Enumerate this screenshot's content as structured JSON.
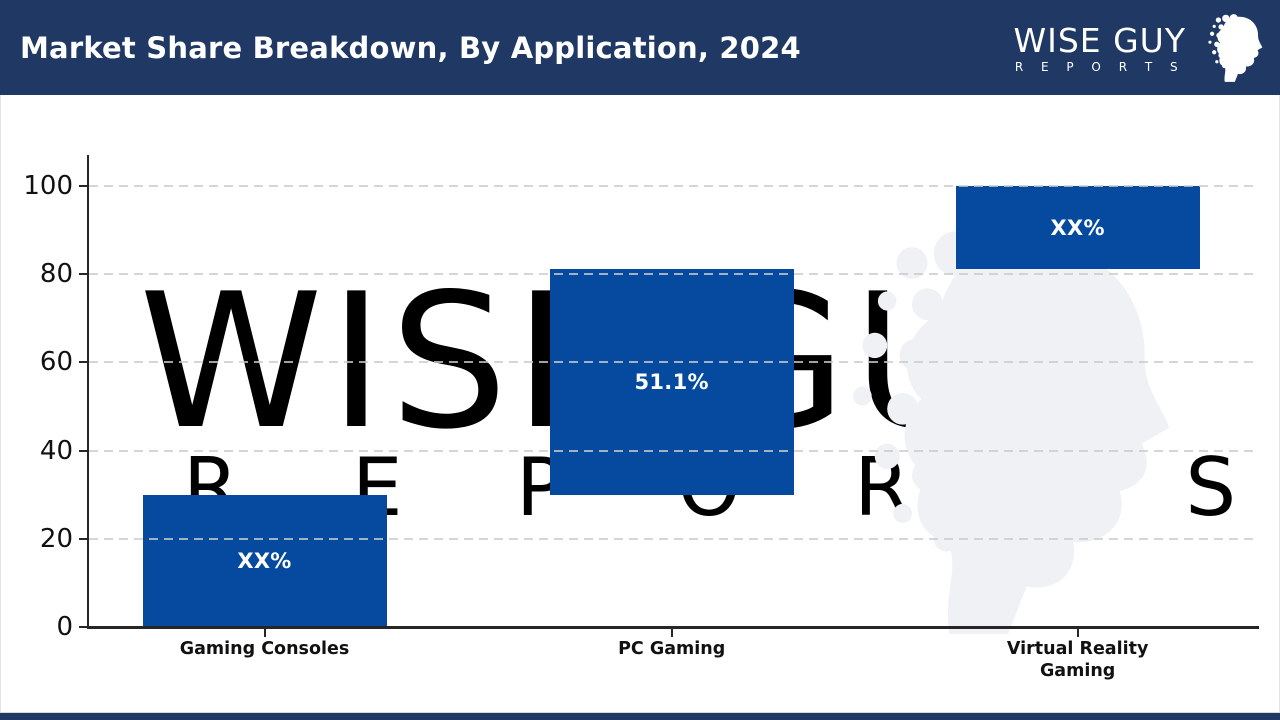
{
  "header": {
    "title": "Market Share Breakdown, By Application, 2024",
    "logo": {
      "line1": "WISE GUY",
      "line2": "R E P O R T S"
    }
  },
  "watermark": {
    "line1": "WISE GUY",
    "line2": "R E P O R T S"
  },
  "colors": {
    "header_bg": "#1f3864",
    "footer_bg": "#1f3864",
    "bar": "#054a9e",
    "grid": "#cbcbcb",
    "axis": "#262626",
    "watermark": "#f1f2f6",
    "title_text": "#ffffff",
    "bar_label_text": "#ffffff"
  },
  "chart_data": {
    "type": "bar",
    "subtype": "floating-waterfall",
    "title": "Market Share Breakdown, By Application, 2024",
    "categories": [
      "Gaming Consoles",
      "PC Gaming",
      "Virtual Reality\nGaming"
    ],
    "series": [
      {
        "name": "Market Share",
        "segments": [
          {
            "category": "Gaming Consoles",
            "start": 0,
            "end": 30,
            "label": "XX%"
          },
          {
            "category": "PC Gaming",
            "start": 30,
            "end": 81.1,
            "label": "51.1%"
          },
          {
            "category": "Virtual Reality Gaming",
            "start": 81.1,
            "end": 100,
            "label": "XX%"
          }
        ]
      }
    ],
    "yticks": [
      0,
      20,
      40,
      60,
      80,
      100
    ],
    "ylim": [
      0,
      107
    ],
    "xlabel": "",
    "ylabel": "",
    "grid": "horizontal-dashed",
    "legend": "none"
  }
}
